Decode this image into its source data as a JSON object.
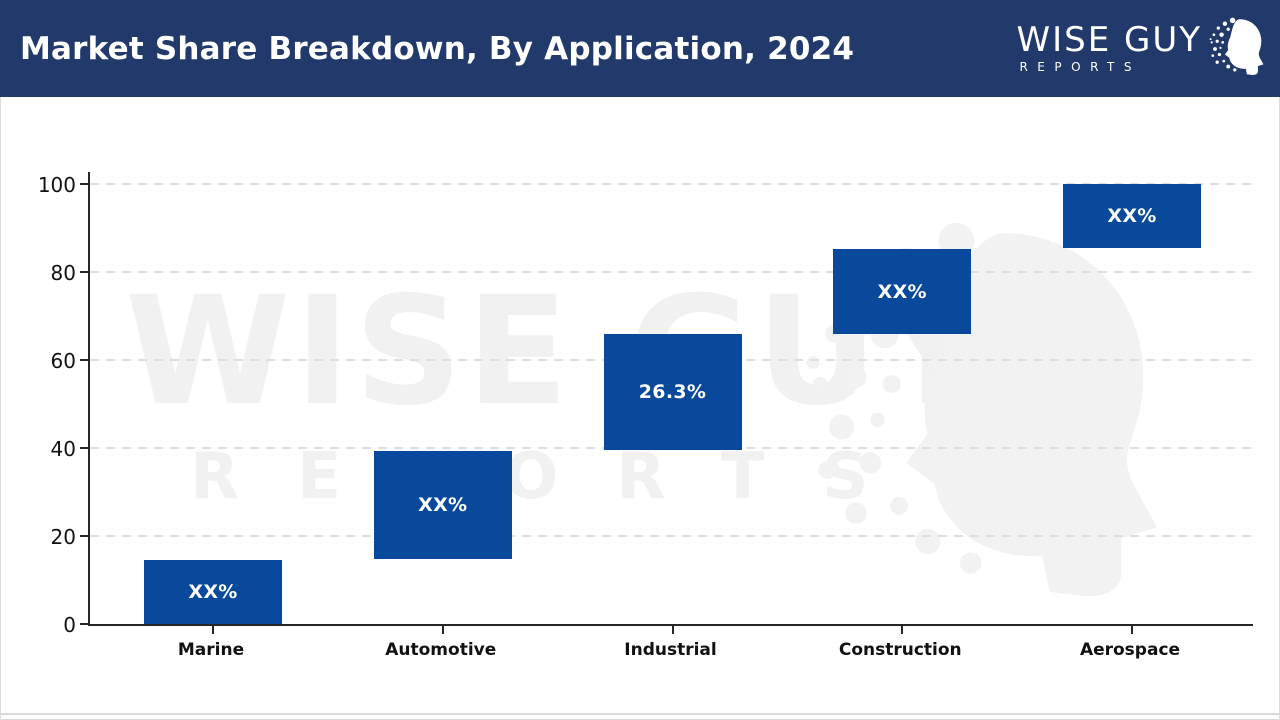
{
  "header": {
    "title": "Market Share Breakdown, By Application, 2024",
    "logo": {
      "line1": "WISE GUY",
      "line2": "REPORTS"
    }
  },
  "watermark": {
    "line1": "WISE GUY",
    "line2": "REPORTS"
  },
  "colors": {
    "header_bg": "#22396b",
    "bar": "#08499c",
    "grid": "#dedede",
    "axis": "#262626",
    "watermark": "#f1f1f1"
  },
  "chart_data": {
    "type": "bar",
    "subtype": "waterfall",
    "title": "Market Share Breakdown, By Application, 2024",
    "categories": [
      "Marine",
      "Automotive",
      "Industrial",
      "Construction",
      "Aerospace"
    ],
    "segments": [
      {
        "category": "Marine",
        "base": 0,
        "top": 14.5,
        "label": "XX%"
      },
      {
        "category": "Automotive",
        "base": 14.8,
        "top": 39.3,
        "label": "XX%"
      },
      {
        "category": "Industrial",
        "base": 39.5,
        "top": 65.8,
        "label": "26.3%"
      },
      {
        "category": "Construction",
        "base": 65.8,
        "top": 85.3,
        "label": "XX%"
      },
      {
        "category": "Aerospace",
        "base": 85.5,
        "top": 100,
        "label": "XX%"
      }
    ],
    "xlabel": "",
    "ylabel": "",
    "ylim": [
      0,
      100
    ],
    "yticks": [
      0,
      20,
      40,
      60,
      80,
      100
    ],
    "grid": "horizontal-dashed",
    "legend": "none"
  }
}
